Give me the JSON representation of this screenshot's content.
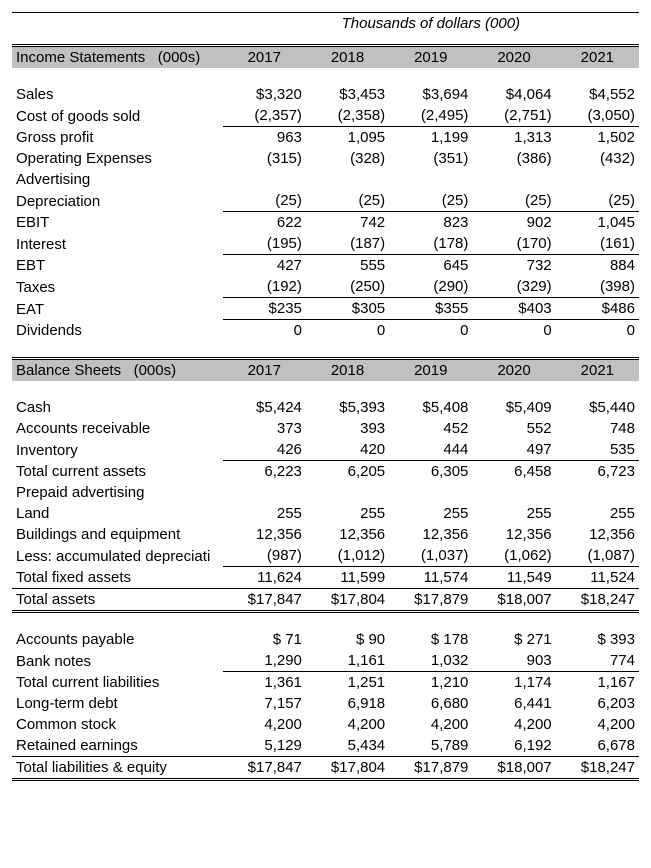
{
  "title": "Thousands of dollars (000)",
  "years": [
    "2017",
    "2018",
    "2019",
    "2020",
    "2021"
  ],
  "income": {
    "heading": "Income Statements",
    "unit": "(000s)",
    "rows": [
      {
        "key": "sales",
        "label": "Sales",
        "vals": [
          "$3,320",
          "$3,453",
          "$3,694",
          "$4,064",
          "$4,552"
        ]
      },
      {
        "key": "cogs",
        "label": "Cost of goods sold",
        "vals": [
          "(2,357)",
          "(2,358)",
          "(2,495)",
          "(2,751)",
          "(3,050)"
        ]
      },
      {
        "key": "gross",
        "label": "Gross profit",
        "vals": [
          "963",
          "1,095",
          "1,199",
          "1,313",
          "1,502"
        ],
        "border": "top"
      },
      {
        "key": "opex",
        "label": "Operating Expenses",
        "vals": [
          "(315)",
          "(328)",
          "(351)",
          "(386)",
          "(432)"
        ]
      },
      {
        "key": "adv",
        "label": "Advertising",
        "vals": [
          "",
          "",
          "",
          "",
          ""
        ]
      },
      {
        "key": "dep",
        "label": "Depreciation",
        "vals": [
          "(25)",
          "(25)",
          "(25)",
          "(25)",
          "(25)"
        ]
      },
      {
        "key": "ebit",
        "label": "EBIT",
        "vals": [
          "622",
          "742",
          "823",
          "902",
          "1,045"
        ],
        "border": "top"
      },
      {
        "key": "int",
        "label": "Interest",
        "vals": [
          "(195)",
          "(187)",
          "(178)",
          "(170)",
          "(161)"
        ]
      },
      {
        "key": "ebt",
        "label": "EBT",
        "vals": [
          "427",
          "555",
          "645",
          "732",
          "884"
        ],
        "border": "top"
      },
      {
        "key": "tax",
        "label": "Taxes",
        "vals": [
          "(192)",
          "(250)",
          "(290)",
          "(329)",
          "(398)"
        ]
      },
      {
        "key": "eat",
        "label": "EAT",
        "vals": [
          "$235",
          "$305",
          "$355",
          "$403",
          "$486"
        ],
        "border": "topdbl"
      },
      {
        "key": "div",
        "label": "Dividends",
        "vals": [
          "0",
          "0",
          "0",
          "0",
          "0"
        ]
      }
    ]
  },
  "balance": {
    "heading": "Balance Sheets",
    "unit": "(000s)",
    "rows": [
      {
        "key": "cash",
        "label": "Cash",
        "vals": [
          "$5,424",
          "$5,393",
          "$5,408",
          "$5,409",
          "$5,440"
        ]
      },
      {
        "key": "ar",
        "label": "Accounts receivable",
        "vals": [
          "373",
          "393",
          "452",
          "552",
          "748"
        ]
      },
      {
        "key": "inv",
        "label": "Inventory",
        "vals": [
          "426",
          "420",
          "444",
          "497",
          "535"
        ]
      },
      {
        "key": "tca",
        "label": "Total current assets",
        "vals": [
          "6,223",
          "6,205",
          "6,305",
          "6,458",
          "6,723"
        ],
        "border": "top"
      },
      {
        "key": "ppa",
        "label": "Prepaid advertising",
        "vals": [
          "",
          "",
          "",
          "",
          ""
        ]
      },
      {
        "key": "land",
        "label": "Land",
        "vals": [
          "255",
          "255",
          "255",
          "255",
          "255"
        ]
      },
      {
        "key": "bldg",
        "label": "Buildings and equipment",
        "vals": [
          "12,356",
          "12,356",
          "12,356",
          "12,356",
          "12,356"
        ]
      },
      {
        "key": "accdep",
        "label": "Less: accumulated depreciati",
        "vals": [
          "(987)",
          "(1,012)",
          "(1,037)",
          "(1,062)",
          "(1,087)"
        ]
      },
      {
        "key": "tfa",
        "label": "Total fixed assets",
        "vals": [
          "11,624",
          "11,599",
          "11,574",
          "11,549",
          "11,524"
        ],
        "border": "top"
      },
      {
        "key": "ta",
        "label": "Total assets",
        "vals": [
          "$17,847",
          "$17,804",
          "$17,879",
          "$18,007",
          "$18,247"
        ],
        "border": "topdbl"
      }
    ],
    "rows2": [
      {
        "key": "ap",
        "label": "Accounts payable",
        "vals": [
          "$      71",
          "$      90",
          "$    178",
          "$    271",
          "$    393"
        ]
      },
      {
        "key": "bn",
        "label": "Bank notes",
        "vals": [
          "1,290",
          "1,161",
          "1,032",
          "903",
          "774"
        ]
      },
      {
        "key": "tcl",
        "label": "Total current liabilities",
        "vals": [
          "1,361",
          "1,251",
          "1,210",
          "1,174",
          "1,167"
        ],
        "border": "top"
      },
      {
        "key": "ltd",
        "label": "Long-term debt",
        "vals": [
          "7,157",
          "6,918",
          "6,680",
          "6,441",
          "6,203"
        ]
      },
      {
        "key": "cs",
        "label": "Common stock",
        "vals": [
          "4,200",
          "4,200",
          "4,200",
          "4,200",
          "4,200"
        ]
      },
      {
        "key": "re",
        "label": "Retained earnings",
        "vals": [
          "5,129",
          "5,434",
          "5,789",
          "6,192",
          "6,678"
        ]
      },
      {
        "key": "tle",
        "label": "Total liabilities & equity",
        "vals": [
          "$17,847",
          "$17,804",
          "$17,879",
          "$18,007",
          "$18,247"
        ],
        "border": "topdbl"
      }
    ]
  },
  "style": {
    "header_bg": "#c0c0c0",
    "text_color": "#000000",
    "bg_color": "#ffffff",
    "font_family": "Arial",
    "font_size_pt": 11
  }
}
